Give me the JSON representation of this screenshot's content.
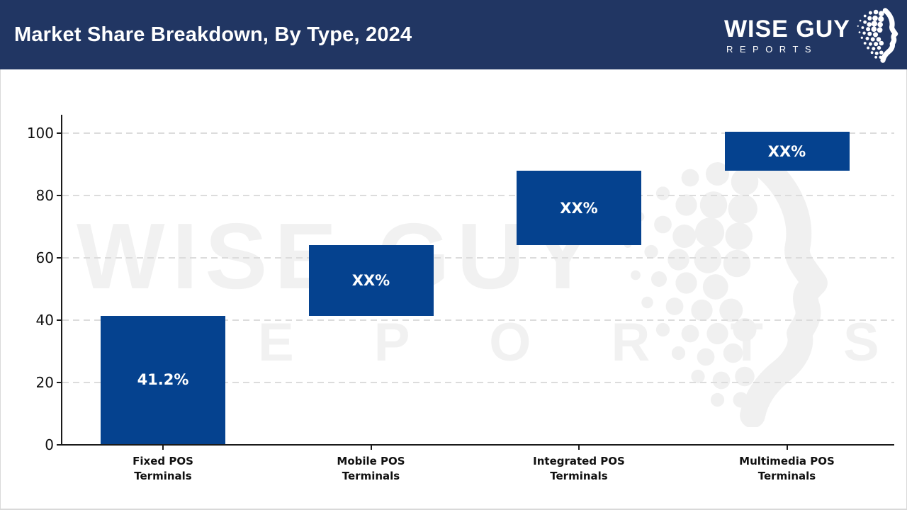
{
  "header": {
    "title": "Market Share Breakdown, By Type, 2024",
    "logo": {
      "name": "WISE GUY",
      "sub": "REPORTS"
    }
  },
  "watermark": {
    "line1": "WISE GUY",
    "line2": "R E P O R T S"
  },
  "chart_data": {
    "type": "bar",
    "subtype": "waterfall",
    "title": "Market Share Breakdown, By Type, 2024",
    "categories": [
      "Fixed POS Terminals",
      "Mobile POS Terminals",
      "Integrated POS Terminals",
      "Multimedia POS Terminals"
    ],
    "tick_labels": [
      "Fixed POS\nTerminals",
      "Mobile POS\nTerminals",
      "Integrated POS\nTerminals",
      "Multimedia POS\nTerminals"
    ],
    "segments": [
      {
        "category": "Fixed POS Terminals",
        "start": 0,
        "end": 41.2,
        "label": "41.2%"
      },
      {
        "category": "Mobile POS Terminals",
        "start": 41.2,
        "end": 63.8,
        "label": "XX%"
      },
      {
        "category": "Integrated POS Terminals",
        "start": 63.8,
        "end": 87.7,
        "label": "XX%"
      },
      {
        "category": "Multimedia POS Terminals",
        "start": 87.7,
        "end": 100.2,
        "label": "XX%"
      }
    ],
    "y_ticks": [
      0,
      20,
      40,
      60,
      80,
      100
    ],
    "ylim": [
      0,
      105.5
    ],
    "xlabel": "",
    "ylabel": "",
    "grid": "horizontal-dashed",
    "legend": "none",
    "bar_color": "#05428F",
    "bar_label_color": "#ffffff",
    "axis_color": "#1a1a1a",
    "grid_color": "#dcdcdc"
  },
  "colors": {
    "header_bg": "#213663",
    "watermark": "#f1f1f1",
    "background": "#ffffff"
  }
}
